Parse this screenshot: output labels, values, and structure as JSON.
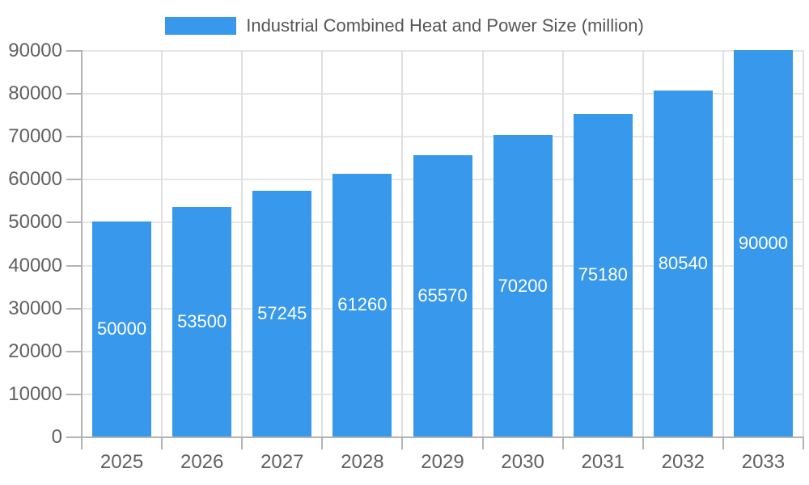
{
  "chart_data": {
    "type": "bar",
    "title": "",
    "xlabel": "",
    "ylabel": "",
    "legend": {
      "label": "Industrial Combined Heat and Power Size (million)",
      "position": "top"
    },
    "categories": [
      "2025",
      "2026",
      "2027",
      "2028",
      "2029",
      "2030",
      "2031",
      "2032",
      "2033"
    ],
    "series": [
      {
        "name": "Industrial Combined Heat and Power Size (million)",
        "values": [
          50000,
          53500,
          57245,
          61260,
          65570,
          70200,
          75180,
          80540,
          90000
        ],
        "color": "#3898ec"
      }
    ],
    "value_labels_visible": true,
    "ylim": [
      0,
      90000
    ],
    "ytick_step": 10000,
    "yticks": [
      0,
      10000,
      20000,
      30000,
      40000,
      50000,
      60000,
      70000,
      80000,
      90000
    ],
    "grid": true,
    "colors": {
      "bar": "#3898ec",
      "bar_label_text": "#ffffff",
      "axis_line": "#b3b3b3",
      "gridline": "#e6e6e6",
      "vertical_gridline": "#e0e0e0",
      "axis_text": "#616161",
      "legend_text": "#555555",
      "background": "#ffffff"
    }
  }
}
